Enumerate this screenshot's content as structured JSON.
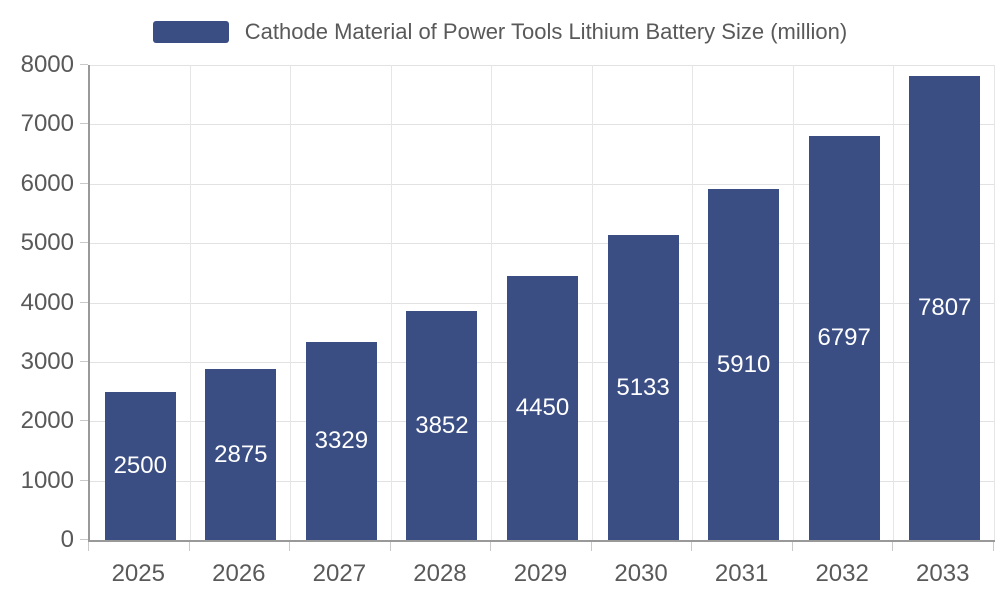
{
  "chart_data": {
    "type": "bar",
    "title": "Cathode Material of Power Tools Lithium Battery Size (million)",
    "legend": [
      "Cathode Material of Power Tools Lithium Battery Size (million)"
    ],
    "legend_position": "top-center",
    "categories": [
      "2025",
      "2026",
      "2027",
      "2028",
      "2029",
      "2030",
      "2031",
      "2032",
      "2033"
    ],
    "series": [
      {
        "name": "Cathode Material of Power Tools Lithium Battery Size (million)",
        "values": [
          2500,
          2875,
          3329,
          3852,
          4450,
          5133,
          5910,
          6797,
          7807
        ]
      }
    ],
    "values": [
      2500,
      2875,
      3329,
      3852,
      4450,
      5133,
      5910,
      6797,
      7807
    ],
    "value_labels": "inside-center-white",
    "xlabel": "",
    "ylabel": "",
    "ylim": [
      0,
      8000
    ],
    "yticks": [
      0,
      1000,
      2000,
      3000,
      4000,
      5000,
      6000,
      7000,
      8000
    ],
    "grid": true,
    "colors": {
      "bar": "#3A4E84",
      "value_label": "#FFFFFF",
      "grid": "#E2E2E2",
      "axis": "#999999",
      "tick_label": "#595959",
      "legend_text": "#595959",
      "background": "#FFFFFF"
    }
  }
}
